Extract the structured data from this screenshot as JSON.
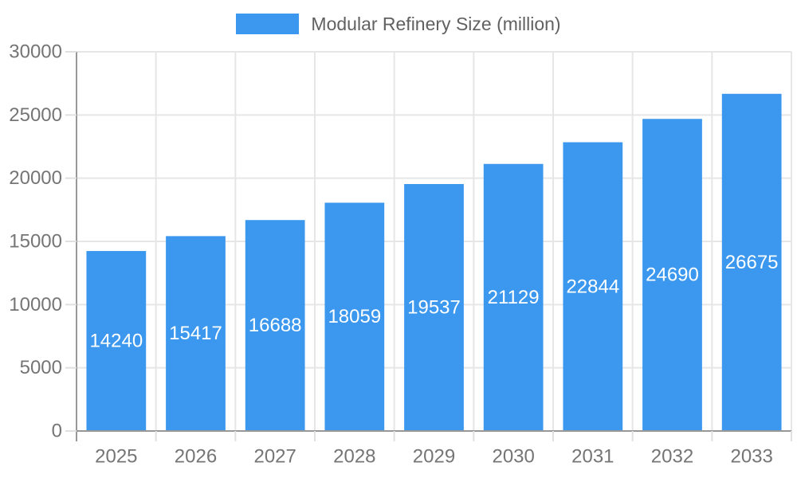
{
  "chart_data": {
    "type": "bar",
    "title": "",
    "xlabel": "",
    "ylabel": "",
    "legend_label": "Modular Refinery Size (million)",
    "legend_position": "top-center",
    "categories": [
      "2025",
      "2026",
      "2027",
      "2028",
      "2029",
      "2030",
      "2031",
      "2032",
      "2033"
    ],
    "series": [
      {
        "name": "Modular Refinery Size (million)",
        "values": [
          14240,
          15417,
          16688,
          18059,
          19537,
          21129,
          22844,
          24690,
          26675
        ]
      }
    ],
    "bar_value_labels": [
      "14240",
      "15417",
      "16688",
      "18059",
      "19537",
      "21129",
      "22844",
      "24690",
      "26675"
    ],
    "ylim": [
      0,
      30000
    ],
    "ytick_step": 5000,
    "ytick_labels": [
      "0",
      "5000",
      "10000",
      "15000",
      "20000",
      "25000",
      "30000"
    ],
    "grid": true,
    "colors": {
      "bar": "#3B98EE",
      "bar_value_text": "#FFFFFF",
      "gridline": "#E6E6E6",
      "tick": "#E0E0E0",
      "axis_line": "#979797",
      "axis_text": "#757575",
      "legend_text": "#616161",
      "background": "#FFFFFF"
    }
  }
}
